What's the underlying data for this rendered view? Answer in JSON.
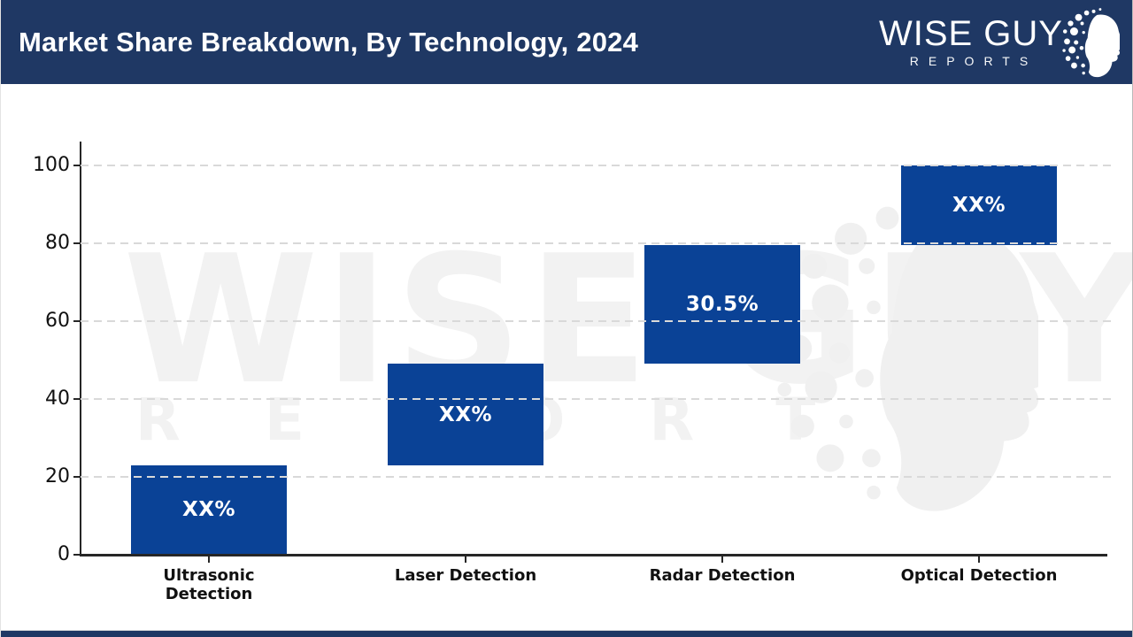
{
  "header": {
    "title": "Market Share Breakdown, By Technology, 2024",
    "logo": {
      "brand": "WISE GUY",
      "sub": "REPORTS"
    }
  },
  "watermark": {
    "brand": "WISE GUY",
    "sub": "REPORTS"
  },
  "footer": {},
  "colors": {
    "header_bg": "#1F3864",
    "bar_blue": "#0A4296",
    "gridline": "#d9d9d9",
    "axis": "#262626",
    "watermark": "#f2f2f2"
  },
  "chart_data": {
    "type": "bar",
    "variant": "floating_segment_waterfall",
    "title": "Market Share Breakdown, By Technology, 2024",
    "categories": [
      "Ultrasonic Detection",
      "Laser Detection",
      "Radar Detection",
      "Optical Detection"
    ],
    "tick_label_lines": [
      [
        "Ultrasonic",
        "Detection"
      ],
      [
        "Laser Detection"
      ],
      [
        "Radar Detection"
      ],
      [
        "Optical Detection"
      ]
    ],
    "segments": [
      {
        "category": "Ultrasonic Detection",
        "start": 0,
        "end": 23,
        "value_label": "XX%"
      },
      {
        "category": "Laser Detection",
        "start": 23,
        "end": 49,
        "value_label": "XX%"
      },
      {
        "category": "Radar Detection",
        "start": 49,
        "end": 79.5,
        "value_label": "30.5%"
      },
      {
        "category": "Optical Detection",
        "start": 79.5,
        "end": 100,
        "value_label": "XX%"
      }
    ],
    "xlabel": "",
    "ylabel": "",
    "ylim": [
      0,
      100
    ],
    "yticks": [
      0,
      20,
      40,
      60,
      80,
      100
    ],
    "grid": "horizontal_dashed",
    "legend": "none",
    "bar_color": "#0A4296",
    "bar_label_color": "#ffffff"
  }
}
